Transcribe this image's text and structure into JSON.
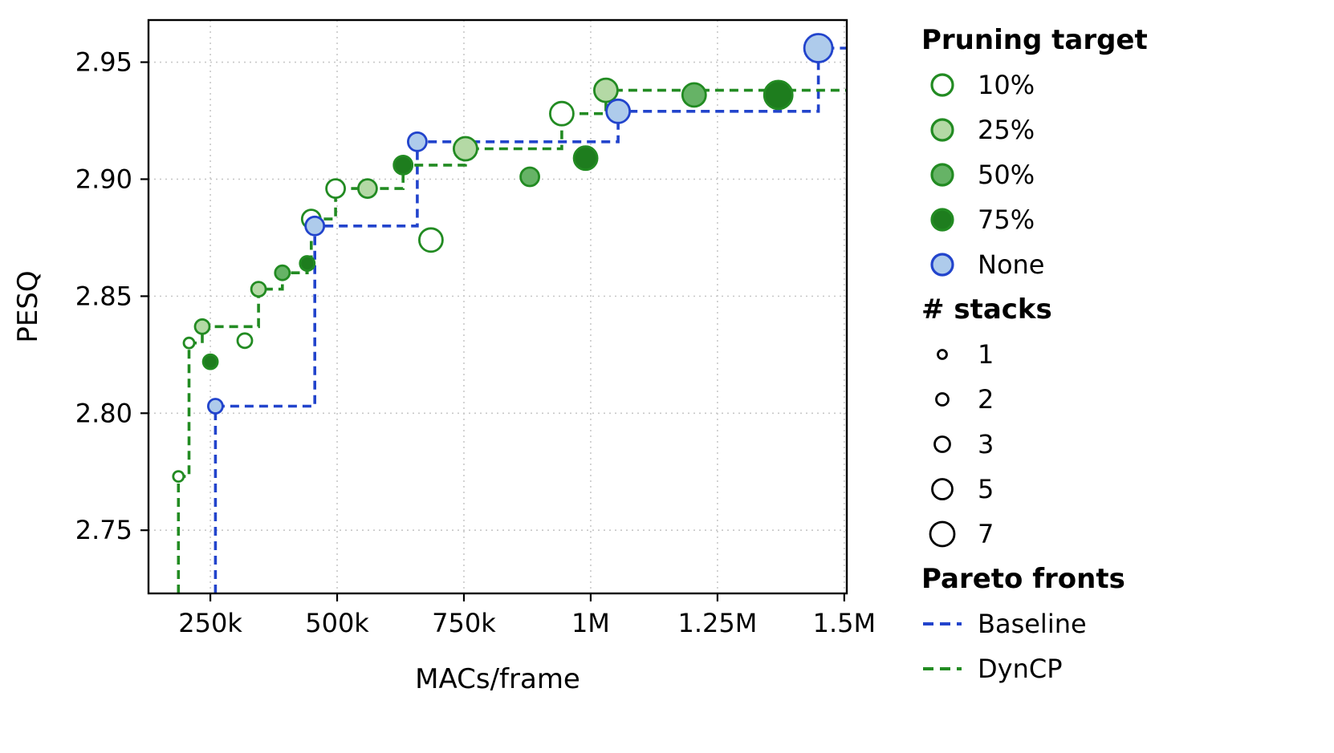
{
  "chart_data": {
    "type": "scatter",
    "title": "",
    "xlabel": "MACs/frame",
    "ylabel": "PESQ",
    "xlim": [
      128000,
      1505000
    ],
    "ylim": [
      2.723,
      2.968
    ],
    "grid": true,
    "xticks": [
      {
        "v": 250000,
        "label": "250k"
      },
      {
        "v": 500000,
        "label": "500k"
      },
      {
        "v": 750000,
        "label": "750k"
      },
      {
        "v": 1000000,
        "label": "1M"
      },
      {
        "v": 1250000,
        "label": "1.25M"
      },
      {
        "v": 1500000,
        "label": "1.5M"
      }
    ],
    "yticks": [
      {
        "v": 2.75,
        "label": "2.75"
      },
      {
        "v": 2.8,
        "label": "2.80"
      },
      {
        "v": 2.85,
        "label": "2.85"
      },
      {
        "v": 2.9,
        "label": "2.90"
      },
      {
        "v": 2.95,
        "label": "2.95"
      }
    ],
    "size_by": "stacks",
    "size_map": {
      "1": 6.5,
      "2": 9,
      "3": 11.5,
      "5": 14.5,
      "7": 17.5
    },
    "series": [
      {
        "name": "10%",
        "fill": "#ffffff",
        "edge": "#228B22",
        "points": [
          {
            "x": 187000,
            "y": 2.773,
            "stacks": 1
          },
          {
            "x": 208000,
            "y": 2.83,
            "stacks": 1
          },
          {
            "x": 318000,
            "y": 2.831,
            "stacks": 2
          },
          {
            "x": 449000,
            "y": 2.883,
            "stacks": 3
          },
          {
            "x": 497000,
            "y": 2.896,
            "stacks": 3
          },
          {
            "x": 685000,
            "y": 2.874,
            "stacks": 5
          },
          {
            "x": 943000,
            "y": 2.928,
            "stacks": 5
          }
        ]
      },
      {
        "name": "25%",
        "fill": "#b4d9a5",
        "edge": "#228B22",
        "points": [
          {
            "x": 234000,
            "y": 2.837,
            "stacks": 2
          },
          {
            "x": 345000,
            "y": 2.853,
            "stacks": 2
          },
          {
            "x": 560000,
            "y": 2.896,
            "stacks": 3
          },
          {
            "x": 753000,
            "y": 2.913,
            "stacks": 5
          },
          {
            "x": 1030000,
            "y": 2.938,
            "stacks": 5
          }
        ]
      },
      {
        "name": "50%",
        "fill": "#66b366",
        "edge": "#228B22",
        "points": [
          {
            "x": 392000,
            "y": 2.86,
            "stacks": 2
          },
          {
            "x": 880000,
            "y": 2.901,
            "stacks": 3
          },
          {
            "x": 1204000,
            "y": 2.936,
            "stacks": 5
          }
        ]
      },
      {
        "name": "75%",
        "fill": "#1e7d1e",
        "edge": "#228B22",
        "points": [
          {
            "x": 250000,
            "y": 2.822,
            "stacks": 2
          },
          {
            "x": 441000,
            "y": 2.864,
            "stacks": 2
          },
          {
            "x": 630000,
            "y": 2.906,
            "stacks": 3
          },
          {
            "x": 990000,
            "y": 2.909,
            "stacks": 5
          },
          {
            "x": 1370000,
            "y": 2.936,
            "stacks": 7
          }
        ]
      },
      {
        "name": "None",
        "fill": "#aecbeb",
        "edge": "#2244cc",
        "points": [
          {
            "x": 260000,
            "y": 2.803,
            "stacks": 2
          },
          {
            "x": 456000,
            "y": 2.88,
            "stacks": 3
          },
          {
            "x": 658000,
            "y": 2.916,
            "stacks": 3
          },
          {
            "x": 1054000,
            "y": 2.929,
            "stacks": 5
          },
          {
            "x": 1449000,
            "y": 2.956,
            "stacks": 7
          }
        ]
      }
    ],
    "pareto_fronts": [
      {
        "name": "Baseline",
        "color": "#2244cc",
        "path": [
          [
            260000,
            2.723
          ],
          [
            260000,
            2.803
          ],
          [
            456000,
            2.803
          ],
          [
            456000,
            2.88
          ],
          [
            658000,
            2.88
          ],
          [
            658000,
            2.916
          ],
          [
            1054000,
            2.916
          ],
          [
            1054000,
            2.929
          ],
          [
            1449000,
            2.929
          ],
          [
            1449000,
            2.956
          ],
          [
            1505000,
            2.956
          ]
        ]
      },
      {
        "name": "DynCP",
        "color": "#228B22",
        "path": [
          [
            187000,
            2.723
          ],
          [
            187000,
            2.773
          ],
          [
            208000,
            2.773
          ],
          [
            208000,
            2.83
          ],
          [
            234000,
            2.83
          ],
          [
            234000,
            2.837
          ],
          [
            345000,
            2.837
          ],
          [
            345000,
            2.853
          ],
          [
            392000,
            2.853
          ],
          [
            392000,
            2.86
          ],
          [
            441000,
            2.86
          ],
          [
            441000,
            2.864
          ],
          [
            449000,
            2.864
          ],
          [
            449000,
            2.883
          ],
          [
            497000,
            2.883
          ],
          [
            497000,
            2.896
          ],
          [
            630000,
            2.896
          ],
          [
            630000,
            2.906
          ],
          [
            753000,
            2.906
          ],
          [
            753000,
            2.913
          ],
          [
            943000,
            2.913
          ],
          [
            943000,
            2.928
          ],
          [
            1030000,
            2.928
          ],
          [
            1030000,
            2.938
          ],
          [
            1505000,
            2.938
          ]
        ]
      }
    ],
    "legend": {
      "pruning_title": "Pruning target",
      "pruning_items": [
        "10%",
        "25%",
        "50%",
        "75%",
        "None"
      ],
      "stacks_title": "# stacks",
      "stacks_items": [
        "1",
        "2",
        "3",
        "5",
        "7"
      ],
      "stacks_radii": [
        5.5,
        7.5,
        9.5,
        12.5,
        15
      ],
      "pareto_title": "Pareto fronts",
      "pareto_items": [
        "Baseline",
        "DynCP"
      ]
    }
  }
}
